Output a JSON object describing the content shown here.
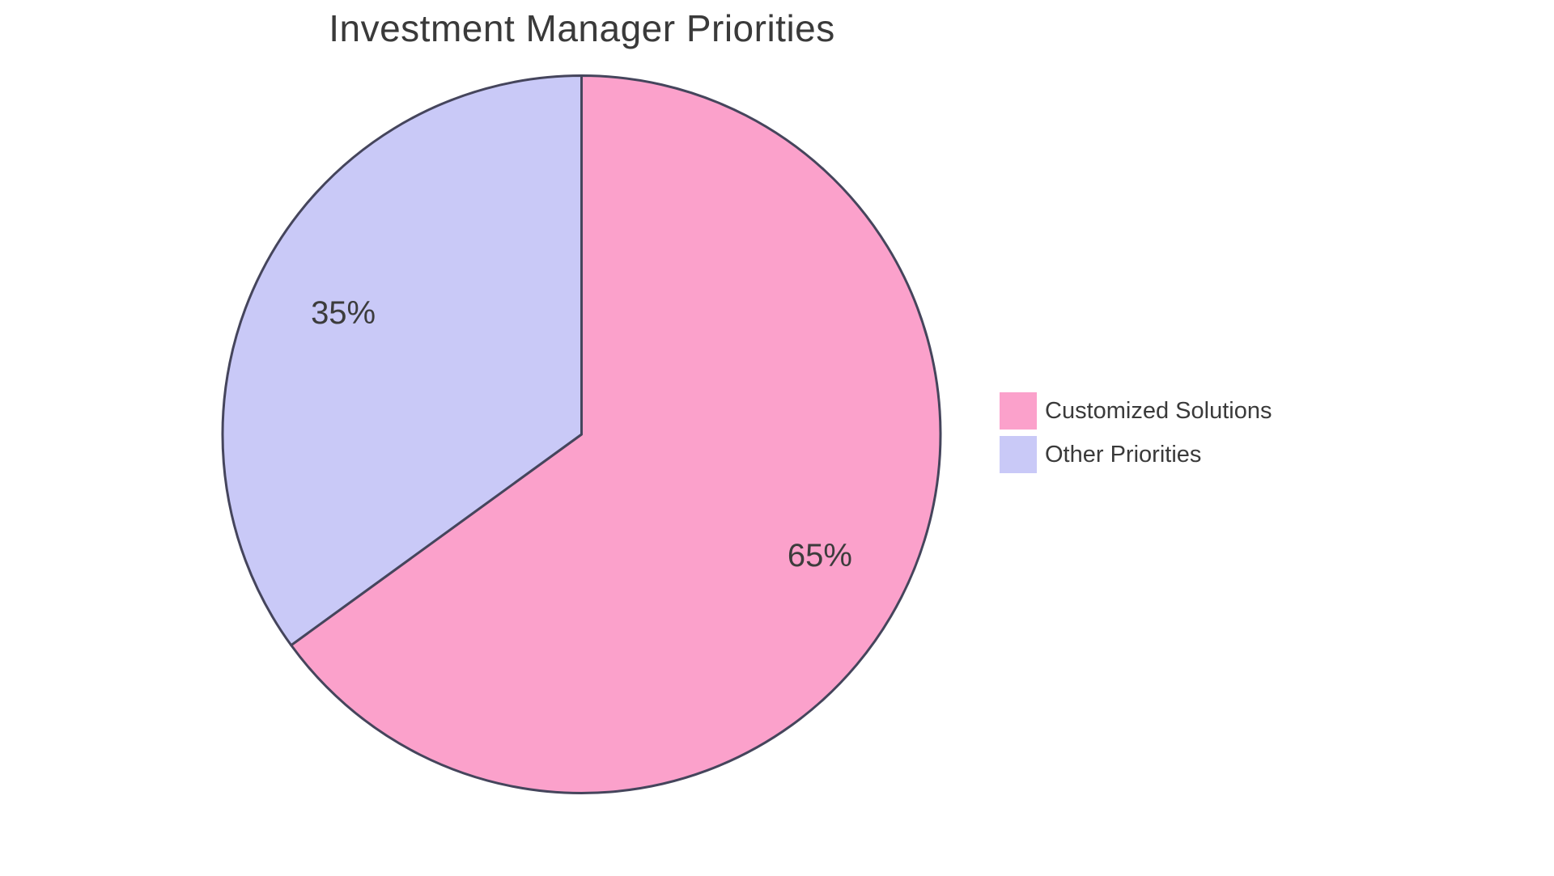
{
  "chart_data": {
    "type": "pie",
    "title": "Investment Manager Priorities",
    "labels": [
      "Customized Solutions",
      "Other Priorities"
    ],
    "values": [
      65,
      35
    ],
    "value_labels": [
      "65%",
      "35%"
    ],
    "colors": [
      "#fba1cb",
      "#c9c9f7"
    ],
    "stroke_color": "#45455c",
    "label_color": "#3c3c3c",
    "start_angle": "top",
    "direction": "clockwise",
    "legend_position": "right",
    "background": "#ffffff"
  },
  "legend": {
    "items": [
      {
        "label": "Customized Solutions",
        "color": "#fba1cb"
      },
      {
        "label": "Other Priorities",
        "color": "#c9c9f7"
      }
    ]
  }
}
